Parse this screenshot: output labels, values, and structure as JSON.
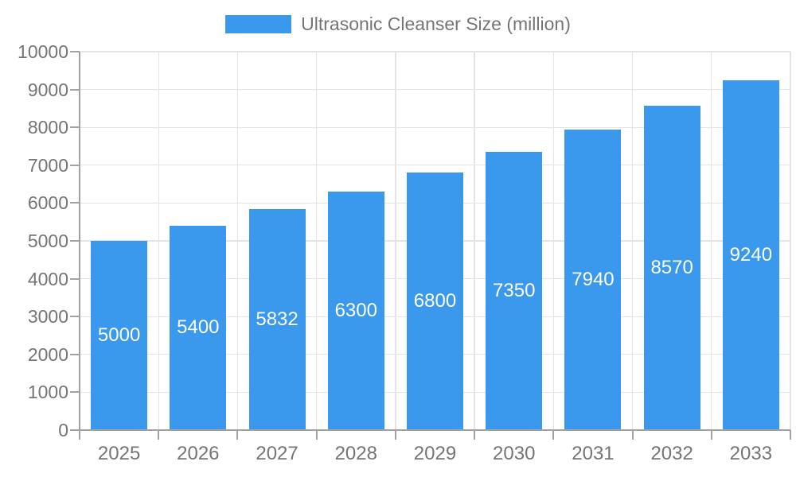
{
  "chart_data": {
    "type": "bar",
    "title": "",
    "xlabel": "",
    "ylabel": "",
    "legend": [
      "Ultrasonic Cleanser Size (million)"
    ],
    "legend_position": "top",
    "series_name": "Ultrasonic Cleanser Size (million)",
    "categories": [
      "2025",
      "2026",
      "2027",
      "2028",
      "2029",
      "2030",
      "2031",
      "2032",
      "2033"
    ],
    "values": [
      5000,
      5400,
      5832,
      6300,
      6800,
      7350,
      7940,
      8570,
      9240
    ],
    "ylim": [
      0,
      10000
    ],
    "ytick_interval": 1000,
    "yticks": [
      0,
      1000,
      2000,
      3000,
      4000,
      5000,
      6000,
      7000,
      8000,
      9000,
      10000
    ],
    "grid": true,
    "bar_labels_visible": true,
    "bar_color": "#3a99ec",
    "bar_label_color": "#ffffff",
    "axis_text_color": "#757575",
    "axis_line_color": "#a2a2a2",
    "grid_color": "#e4e4e4"
  }
}
